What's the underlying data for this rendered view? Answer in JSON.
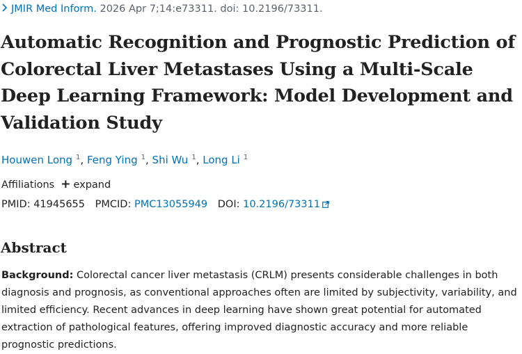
{
  "citation": {
    "chevron_icon": "chevron-right-icon",
    "journal": "JMIR Med Inform.",
    "rest": " 2026 Apr 7;14:e73311. doi: 10.2196/73311."
  },
  "title": "Automatic Recognition and Prognostic Prediction of Colorectal Liver Metastases Using a Multi-Scale Deep Learning Framework: Model Development and Validation Study",
  "authors": [
    {
      "name": "Houwen Long",
      "sup": "1"
    },
    {
      "name": "Feng Ying",
      "sup": "1"
    },
    {
      "name": "Shi Wu",
      "sup": "1"
    },
    {
      "name": "Long Li",
      "sup": "1"
    }
  ],
  "affiliations": {
    "label": "Affiliations",
    "expand_icon": "plus-icon",
    "expand_label": "expand"
  },
  "ids": {
    "pmid_label": "PMID:",
    "pmid": "41945655",
    "pmcid_label": "PMCID:",
    "pmcid": "PMC13055949",
    "doi_label": "DOI:",
    "doi": "10.2196/73311",
    "doi_icon": "external-link-icon"
  },
  "abstract": {
    "heading": "Abstract",
    "background_label": "Background:",
    "background_text": " Colorectal cancer liver metastasis (CRLM) presents considerable challenges in both diagnosis and prognosis, as conventional approaches often are limited by subjectivity, variability, and limited efficiency. Recent advances in deep learning have shown great potential for automated extraction of pathological features, offering improved diagnostic accuracy and more reliable prognostic predictions."
  },
  "colors": {
    "link": "#0071bc",
    "text": "#212121",
    "muted": "#5b616b"
  }
}
